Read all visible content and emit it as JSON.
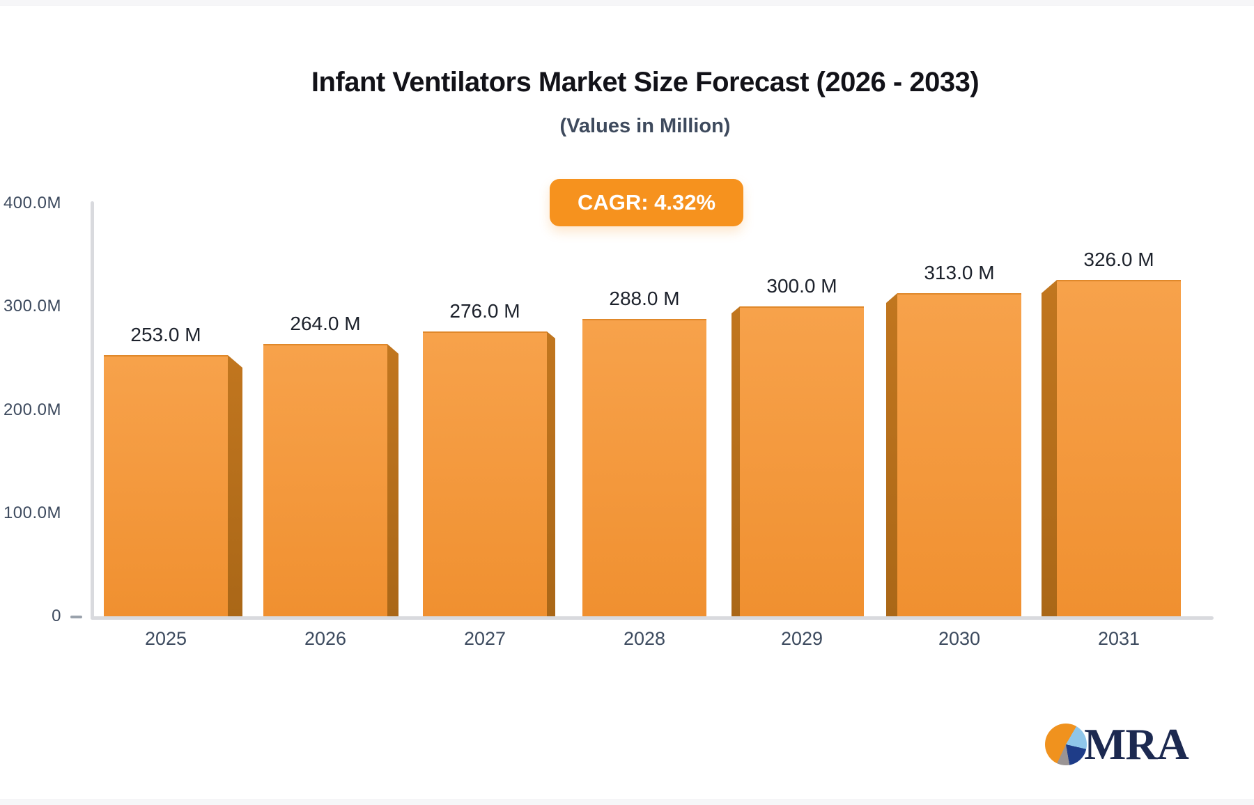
{
  "header": {
    "title": "Infant Ventilators Market Size Forecast (2026 - 2033)",
    "subtitle": "(Values in Million)"
  },
  "badge": {
    "label": "CAGR: 4.32%",
    "background_color": "#f6921e",
    "text_color": "#ffffff"
  },
  "chart_data": {
    "type": "bar",
    "categories": [
      "2025",
      "2026",
      "2027",
      "2028",
      "2029",
      "2030",
      "2031"
    ],
    "values": [
      253,
      264,
      276,
      288,
      300,
      313,
      326
    ],
    "value_labels": [
      "253.0 M",
      "264.0 M",
      "276.0 M",
      "288.0 M",
      "300.0 M",
      "313.0 M",
      "326.0 M"
    ],
    "title": "Infant Ventilators Market Size Forecast (2026 - 2033)",
    "subtitle": "(Values in Million)",
    "xlabel": "",
    "ylabel": "",
    "ylim": [
      0,
      400
    ],
    "y_ticks": [
      {
        "value": 400,
        "label": "400.0M"
      },
      {
        "value": 300,
        "label": "300.0M"
      },
      {
        "value": 200,
        "label": "200.0M"
      },
      {
        "value": 100,
        "label": "100.0M"
      },
      {
        "value": 0,
        "label": "0"
      }
    ],
    "grid": false,
    "legend": false,
    "annotation": "CAGR: 4.32%",
    "style": "3d-perspective-bars",
    "colors": {
      "bar_top": "#f7a24b",
      "bar_bottom": "#f09030",
      "bar_border_top": "#e0882a",
      "bar_side_light": "#c1761f",
      "bar_side_dark": "#aa6717",
      "axis": "#d9dade",
      "tick_text": "#3d4a5e",
      "value_text": "#1c212b"
    }
  },
  "logo": {
    "text": "MRA",
    "text_color": "#1c2950",
    "pie_colors": {
      "orange": "#f0921e",
      "light_blue": "#8fc6ea",
      "dark_blue": "#1e3c88",
      "gray": "#9a9494"
    }
  }
}
